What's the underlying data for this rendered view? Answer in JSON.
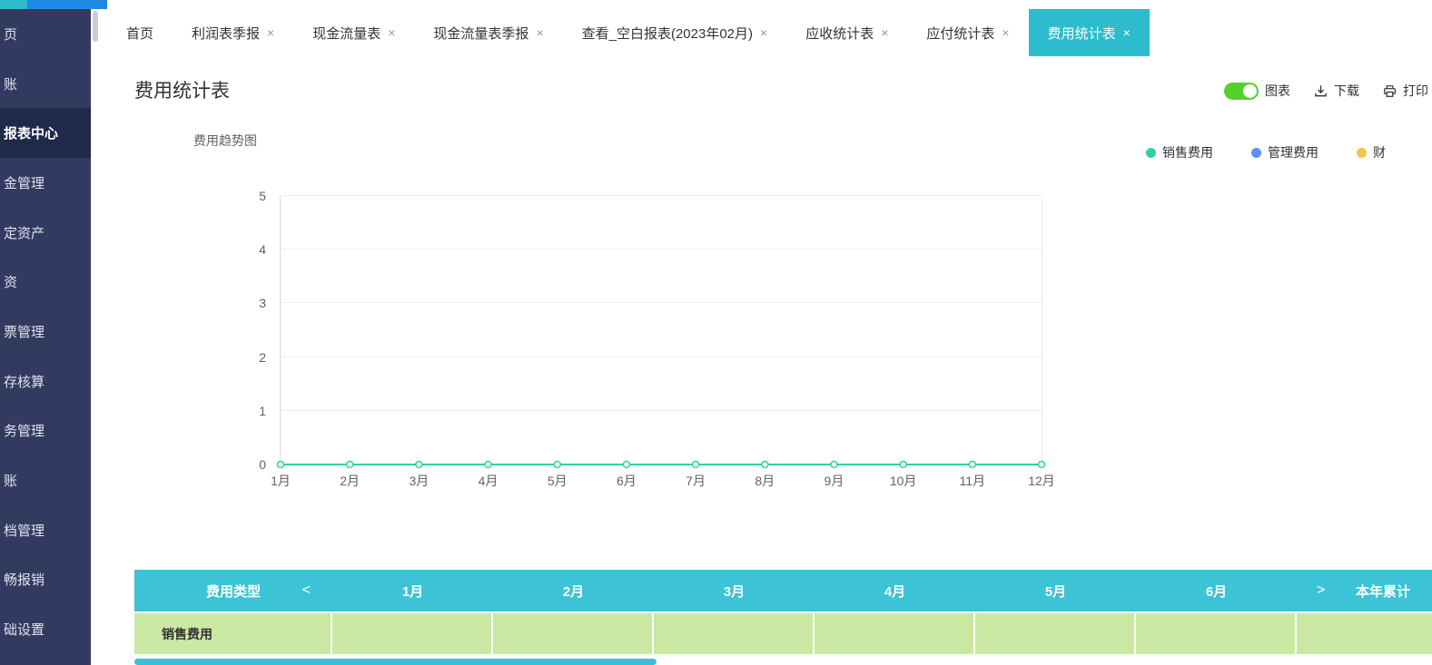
{
  "colors": {
    "sidebar_bg": "#323b5f",
    "sidebar_active_bg": "#20294a",
    "brand_blue": "#1e88e5",
    "accent_teal": "#2dbccd",
    "table_header_teal": "#3cc3d5",
    "row_green": "#c9e9a2",
    "toggle_green": "#55d02a",
    "scroll_thumb_teal": "#38c1d3"
  },
  "glyphs": {
    "close": "×",
    "chevron_left": "<",
    "chevron_right": ">"
  },
  "sidebar": {
    "items": [
      {
        "label": "页",
        "active": false
      },
      {
        "label": "账",
        "active": false
      },
      {
        "label": "报表中心",
        "active": true
      },
      {
        "label": "金管理",
        "active": false
      },
      {
        "label": "定资产",
        "active": false
      },
      {
        "label": "资",
        "active": false
      },
      {
        "label": "票管理",
        "active": false
      },
      {
        "label": "存核算",
        "active": false
      },
      {
        "label": "务管理",
        "active": false
      },
      {
        "label": "账",
        "active": false
      },
      {
        "label": "档管理",
        "active": false
      },
      {
        "label": "畅报销",
        "active": false
      },
      {
        "label": "础设置",
        "active": false
      }
    ]
  },
  "tabs": [
    {
      "label": "首页",
      "closable": false,
      "active": false
    },
    {
      "label": "利润表季报",
      "closable": true,
      "active": false
    },
    {
      "label": "现金流量表",
      "closable": true,
      "active": false
    },
    {
      "label": "现金流量表季报",
      "closable": true,
      "active": false
    },
    {
      "label": "查看_空白报表(2023年02月)",
      "closable": true,
      "active": false
    },
    {
      "label": "应收统计表",
      "closable": true,
      "active": false
    },
    {
      "label": "应付统计表",
      "closable": true,
      "active": false
    },
    {
      "label": "费用统计表",
      "closable": true,
      "active": true
    }
  ],
  "page": {
    "title": "费用统计表"
  },
  "toolbar": {
    "chart_toggle_label": "图表",
    "toggle_state": "on",
    "download_label": "下载",
    "print_label": "打印"
  },
  "chart_data": {
    "type": "line",
    "title": "费用趋势图",
    "x": [
      "1月",
      "2月",
      "3月",
      "4月",
      "5月",
      "6月",
      "7月",
      "8月",
      "9月",
      "10月",
      "11月",
      "12月"
    ],
    "ylim": [
      0,
      5
    ],
    "yticks": [
      0,
      1,
      2,
      3,
      4,
      5
    ],
    "grid": true,
    "legend": [
      {
        "label": "销售费用",
        "color": "#2ed0a2"
      },
      {
        "label": "管理费用",
        "color": "#5b8ff9"
      },
      {
        "label": "财",
        "color": "#f0c64a"
      }
    ],
    "series": [
      {
        "name": "销售费用",
        "color": "#2ed0a2",
        "values": [
          0,
          0,
          0,
          0,
          0,
          0,
          0,
          0,
          0,
          0,
          0,
          0
        ]
      }
    ]
  },
  "table": {
    "type_header": "费用类型",
    "month_headers": [
      "1月",
      "2月",
      "3月",
      "4月",
      "5月",
      "6月"
    ],
    "total_header": "本年累计",
    "rows": [
      {
        "name": "销售费用",
        "values": [
          "",
          "",
          "",
          "",
          "",
          ""
        ],
        "total": ""
      }
    ]
  }
}
